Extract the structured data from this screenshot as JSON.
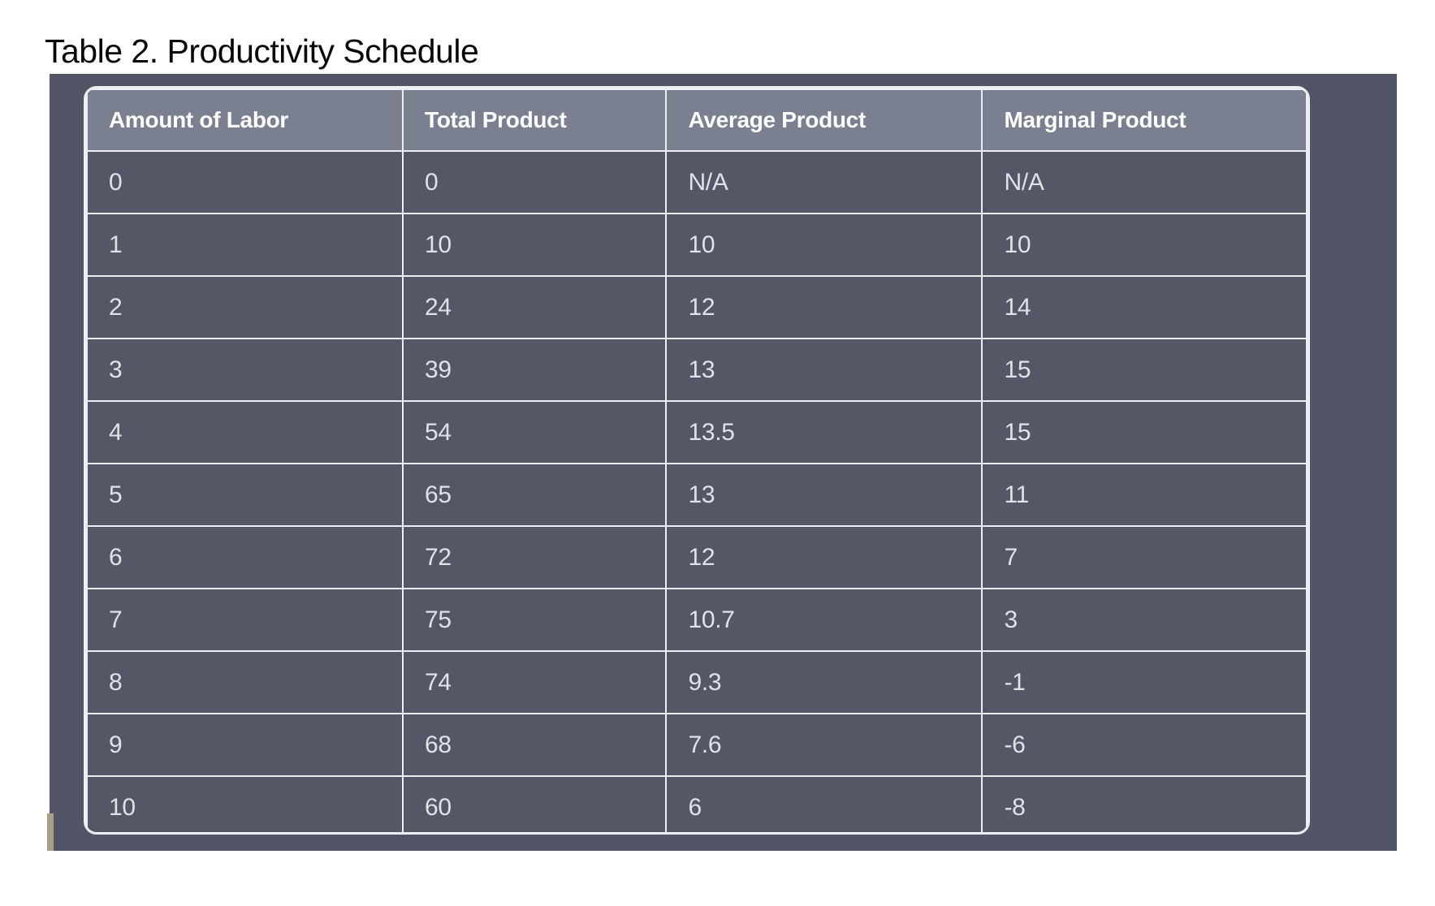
{
  "title": "Table 2. Productivity Schedule",
  "table": {
    "columns": [
      "Amount of Labor",
      "Total Product",
      "Average Product",
      "Marginal Product"
    ],
    "rows": [
      [
        "0",
        "0",
        "N/A",
        "N/A"
      ],
      [
        "1",
        "10",
        "10",
        "10"
      ],
      [
        "2",
        "24",
        "12",
        "14"
      ],
      [
        "3",
        "39",
        "13",
        "15"
      ],
      [
        "4",
        "54",
        "13.5",
        "15"
      ],
      [
        "5",
        "65",
        "13",
        "11"
      ],
      [
        "6",
        "72",
        "12",
        "7"
      ],
      [
        "7",
        "75",
        "10.7",
        "3"
      ],
      [
        "8",
        "74",
        "9.3",
        "-1"
      ],
      [
        "9",
        "68",
        "7.6",
        "-6"
      ],
      [
        "10",
        "60",
        "6",
        "-8"
      ]
    ]
  },
  "colors": {
    "panel_background": "#515565",
    "cell_background": "#535766",
    "header_background": "#7b8090",
    "grid_line": "#edeef2",
    "cell_text": "#e0e2e8",
    "header_text": "#ffffff",
    "title_text": "#070707",
    "edge_artifact": "#a89f86"
  }
}
